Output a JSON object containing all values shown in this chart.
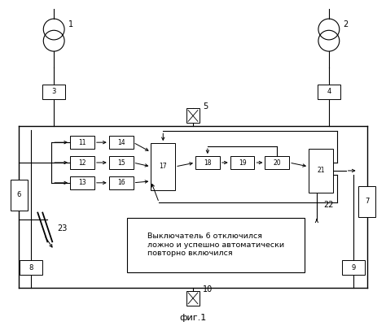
{
  "fig_width": 4.74,
  "fig_height": 4.01,
  "bg_color": "#ffffff",
  "title": "фиг.1",
  "annotation_text": "Выключатель 6 отключился\nложно и успешно автоматически\nповторно включился"
}
